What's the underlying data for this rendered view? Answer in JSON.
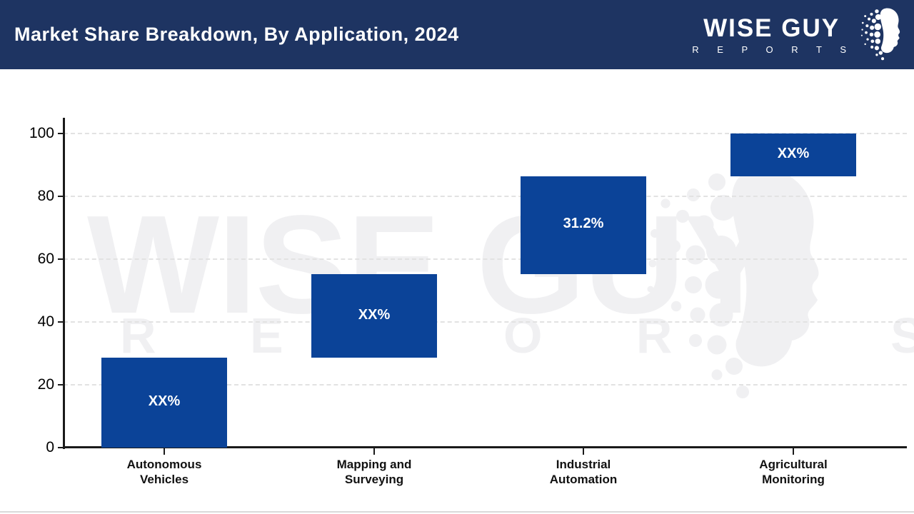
{
  "header": {
    "title": "Market Share Breakdown, By Application, 2024",
    "bg_color": "#1e3462",
    "logo": {
      "wordmark": "WISE GUY",
      "reports": "R E P O R T S"
    }
  },
  "watermark": {
    "wordmark": "WISE GUY",
    "reports": "R E P O R T S"
  },
  "chart_data": {
    "type": "bar",
    "subtype": "floating-waterfall",
    "title": "Market Share Breakdown, By Application, 2024",
    "xlabel": "",
    "ylabel": "",
    "ylim": [
      0,
      105
    ],
    "y_ticks": [
      0,
      20,
      40,
      60,
      80,
      100
    ],
    "grid": "horizontal-dashed",
    "legend": "none",
    "bar_color": "#0b4398",
    "categories": [
      [
        "Autonomous",
        "Vehicles"
      ],
      [
        "Mapping and",
        "Surveying"
      ],
      [
        "Industrial",
        "Automation"
      ],
      [
        "Agricultural",
        "Monitoring"
      ]
    ],
    "segments": [
      {
        "category": "Autonomous Vehicles",
        "from": 0,
        "to": 28.6,
        "label": "XX%"
      },
      {
        "category": "Mapping and Surveying",
        "from": 28.6,
        "to": 55.2,
        "label": "XX%"
      },
      {
        "category": "Industrial Automation",
        "from": 55.2,
        "to": 86.4,
        "label": "31.2%"
      },
      {
        "category": "Agricultural Monitoring",
        "from": 86.4,
        "to": 100,
        "label": "XX%"
      }
    ]
  }
}
